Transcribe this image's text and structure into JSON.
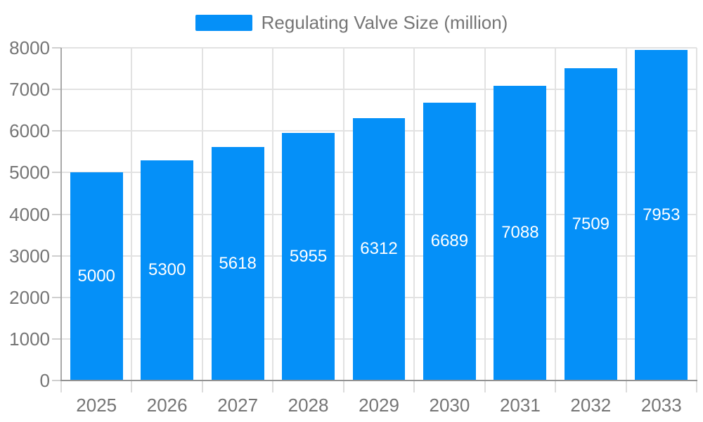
{
  "legend": {
    "label": "Regulating Valve Size (million)"
  },
  "colors": {
    "bar": "#0590f8",
    "grid": "#e2e2e2",
    "axis_y": "#a8a8a8",
    "axis_x": "#929292",
    "tick": "#cfcfcf",
    "text": "#757575",
    "bar_label": "#ffffff"
  },
  "chart_data": {
    "type": "bar",
    "title": "Regulating Valve Size (million)",
    "categories": [
      "2025",
      "2026",
      "2027",
      "2028",
      "2029",
      "2030",
      "2031",
      "2032",
      "2033"
    ],
    "values": [
      5000,
      5300,
      5618,
      5955,
      6312,
      6689,
      7088,
      7509,
      7953
    ],
    "xlabel": "",
    "ylabel": "",
    "ylim": [
      0,
      8000
    ],
    "yticks": [
      0,
      1000,
      2000,
      3000,
      4000,
      5000,
      6000,
      7000,
      8000
    ],
    "grid": true,
    "legend_position": "top",
    "bar_color": "#0590f8",
    "value_labels": "inside-center-white"
  }
}
